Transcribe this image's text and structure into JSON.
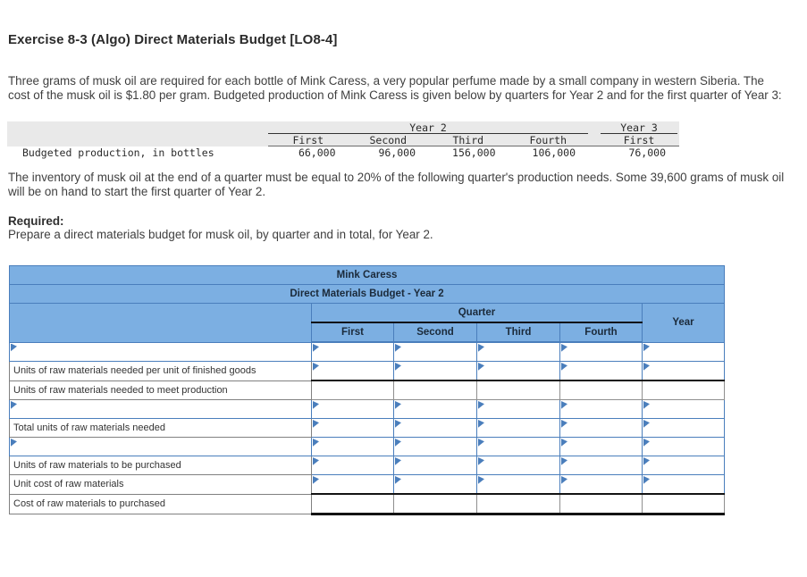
{
  "page": {
    "title": "Exercise 8-3 (Algo) Direct Materials Budget [LO8-4]",
    "intro": "Three grams of musk oil are required for each bottle of Mink Caress, a very popular perfume made by a small company in western Siberia. The cost of the musk oil is $1.80 per gram. Budgeted production of Mink Caress is given below by quarters for Year 2 and for the first quarter of Year 3:",
    "inventory_note": "The inventory of musk oil at the end of a quarter must be equal to 20% of the following quarter's production needs. Some 39,600 grams of musk oil will be on hand to start the first quarter of Year 2.",
    "required_label": "Required:",
    "required_text": "Prepare a direct materials budget for musk oil, by quarter and in total, for Year 2."
  },
  "production_table": {
    "year2_label": "Year 2",
    "year3_label": "Year 3",
    "quarter_headers": [
      "First",
      "Second",
      "Third",
      "Fourth",
      "First"
    ],
    "row_label": "Budgeted production, in bottles",
    "values": [
      "66,000",
      "96,000",
      "156,000",
      "106,000",
      "76,000"
    ]
  },
  "budget_table": {
    "title": "Mink Caress",
    "subtitle": "Direct Materials Budget - Year 2",
    "quarter_group_label": "Quarter",
    "year_label": "Year",
    "column_headers": [
      "First",
      "Second",
      "Third",
      "Fourth"
    ],
    "accent_color": "#7cafe2",
    "border_color": "#4a7ebc",
    "rows": [
      {
        "label": "",
        "label_input": true,
        "cells": "input",
        "rule": ""
      },
      {
        "label": "Units of raw materials needed per unit of finished goods",
        "label_input": false,
        "cells": "input",
        "rule": ""
      },
      {
        "label": "Units of raw materials needed to meet production",
        "label_input": false,
        "cells": "plain",
        "rule": "top"
      },
      {
        "label": "",
        "label_input": true,
        "cells": "input",
        "rule": ""
      },
      {
        "label": "Total units of raw materials needed",
        "label_input": false,
        "cells": "input",
        "rule": ""
      },
      {
        "label": "",
        "label_input": true,
        "cells": "input",
        "rule": ""
      },
      {
        "label": "Units of raw materials to be purchased",
        "label_input": false,
        "cells": "input",
        "rule": ""
      },
      {
        "label": "Unit cost of raw materials",
        "label_input": false,
        "cells": "input",
        "rule": ""
      },
      {
        "label": "Cost of raw materials to purchased",
        "label_input": false,
        "cells": "plain",
        "rule": "top-bottom"
      }
    ]
  }
}
